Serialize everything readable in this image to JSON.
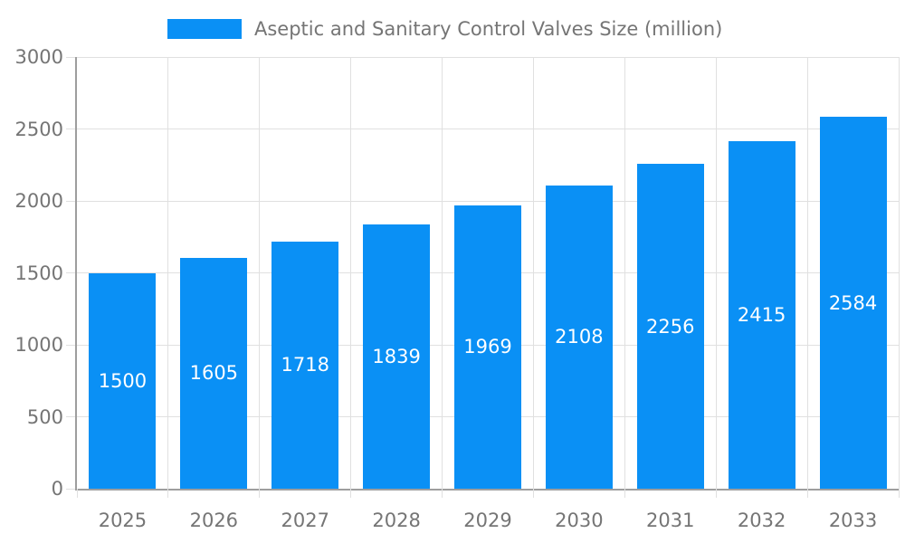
{
  "legend": {
    "label": "Aseptic and Sanitary Control Valves Size (million)"
  },
  "chart_data": {
    "type": "bar",
    "title": "Aseptic and Sanitary Control Valves Size (million)",
    "categories": [
      "2025",
      "2026",
      "2027",
      "2028",
      "2029",
      "2030",
      "2031",
      "2032",
      "2033"
    ],
    "values": [
      1500,
      1605,
      1718,
      1839,
      1969,
      2108,
      2256,
      2415,
      2584
    ],
    "series": [
      {
        "name": "Aseptic and Sanitary Control Valves Size (million)",
        "values": [
          1500,
          1605,
          1718,
          1839,
          1969,
          2108,
          2256,
          2415,
          2584
        ]
      }
    ],
    "xlabel": "",
    "ylabel": "",
    "ylim": [
      0,
      3000
    ],
    "yticks": [
      0,
      500,
      1000,
      1500,
      2000,
      2500,
      3000
    ],
    "grid": true,
    "legend_position": "top",
    "value_labels": "inside-center",
    "colors": {
      "bar": "#0a90f5",
      "value_label": "#ffffff",
      "axis_text": "#757575",
      "gridline": "#e0e0e0",
      "axis_line": "#9e9e9e",
      "background": "#ffffff"
    }
  }
}
